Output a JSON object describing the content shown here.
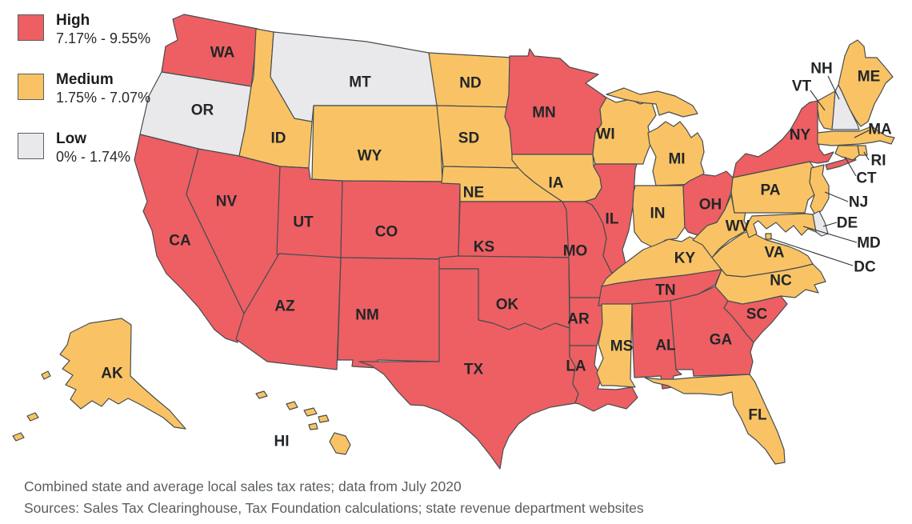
{
  "legend": {
    "items": [
      {
        "id": "high",
        "label": "High",
        "range": "7.17% - 9.55%",
        "color": "#ed5f63"
      },
      {
        "id": "medium",
        "label": "Medium",
        "range": "1.75% - 7.07%",
        "color": "#f9c365"
      },
      {
        "id": "low",
        "label": "Low",
        "range": "0% - 1.74%",
        "color": "#e9e9eb"
      }
    ]
  },
  "map": {
    "border_color": "#474d4f",
    "label_color": "#232628",
    "leader_color": "#2e3234"
  },
  "caption": {
    "line1": "Combined state and average local sales tax rates; data from July 2020",
    "line2": "Sources: Sales Tax Clearinghouse, Tax Foundation calculations; state revenue department websites"
  },
  "chart_data": {
    "type": "choropleth",
    "region": "United States",
    "measure": "Combined state and average local sales tax rate",
    "legend": [
      {
        "category": "high",
        "label": "High",
        "range": "7.17% - 9.55%"
      },
      {
        "category": "medium",
        "label": "Medium",
        "range": "1.75% - 7.07%"
      },
      {
        "category": "low",
        "label": "Low",
        "range": "0% - 1.74%"
      }
    ],
    "states": [
      {
        "abbr": "WA",
        "category": "high"
      },
      {
        "abbr": "OR",
        "category": "low"
      },
      {
        "abbr": "CA",
        "category": "high"
      },
      {
        "abbr": "NV",
        "category": "high"
      },
      {
        "abbr": "ID",
        "category": "medium"
      },
      {
        "abbr": "MT",
        "category": "low"
      },
      {
        "abbr": "WY",
        "category": "medium"
      },
      {
        "abbr": "UT",
        "category": "high"
      },
      {
        "abbr": "CO",
        "category": "high"
      },
      {
        "abbr": "AZ",
        "category": "high"
      },
      {
        "abbr": "NM",
        "category": "high"
      },
      {
        "abbr": "ND",
        "category": "medium"
      },
      {
        "abbr": "SD",
        "category": "medium"
      },
      {
        "abbr": "NE",
        "category": "medium"
      },
      {
        "abbr": "KS",
        "category": "high"
      },
      {
        "abbr": "OK",
        "category": "high"
      },
      {
        "abbr": "TX",
        "category": "high"
      },
      {
        "abbr": "MN",
        "category": "high"
      },
      {
        "abbr": "IA",
        "category": "medium"
      },
      {
        "abbr": "MO",
        "category": "high"
      },
      {
        "abbr": "AR",
        "category": "high"
      },
      {
        "abbr": "LA",
        "category": "high"
      },
      {
        "abbr": "WI",
        "category": "medium"
      },
      {
        "abbr": "MI",
        "category": "medium"
      },
      {
        "abbr": "IL",
        "category": "high"
      },
      {
        "abbr": "IN",
        "category": "medium"
      },
      {
        "abbr": "OH",
        "category": "high"
      },
      {
        "abbr": "KY",
        "category": "medium"
      },
      {
        "abbr": "TN",
        "category": "high"
      },
      {
        "abbr": "MS",
        "category": "medium"
      },
      {
        "abbr": "AL",
        "category": "high"
      },
      {
        "abbr": "GA",
        "category": "high"
      },
      {
        "abbr": "FL",
        "category": "medium"
      },
      {
        "abbr": "SC",
        "category": "high"
      },
      {
        "abbr": "NC",
        "category": "medium"
      },
      {
        "abbr": "VA",
        "category": "medium"
      },
      {
        "abbr": "WV",
        "category": "medium"
      },
      {
        "abbr": "PA",
        "category": "medium"
      },
      {
        "abbr": "NY",
        "category": "high"
      },
      {
        "abbr": "NJ",
        "category": "medium"
      },
      {
        "abbr": "DE",
        "category": "low"
      },
      {
        "abbr": "MD",
        "category": "medium"
      },
      {
        "abbr": "DC",
        "category": "medium"
      },
      {
        "abbr": "VT",
        "category": "medium"
      },
      {
        "abbr": "NH",
        "category": "low"
      },
      {
        "abbr": "ME",
        "category": "medium"
      },
      {
        "abbr": "MA",
        "category": "medium"
      },
      {
        "abbr": "RI",
        "category": "medium"
      },
      {
        "abbr": "CT",
        "category": "medium"
      },
      {
        "abbr": "AK",
        "category": "medium"
      },
      {
        "abbr": "HI",
        "category": "medium"
      }
    ]
  }
}
